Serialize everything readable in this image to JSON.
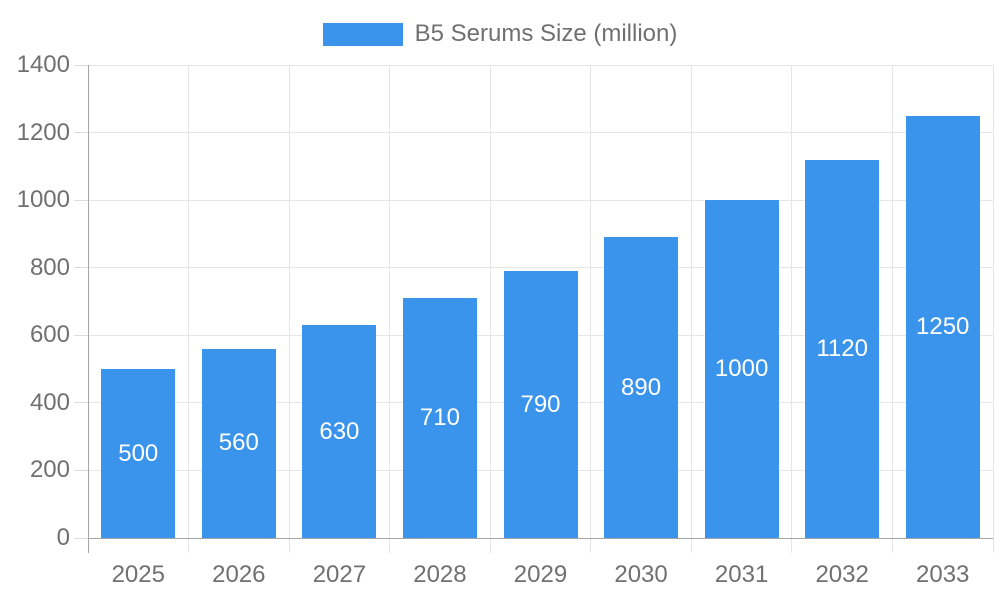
{
  "legend": {
    "label": "B5 Serums Size (million)"
  },
  "colors": {
    "bar": "#3b94eb",
    "bar_label": "#ffffff",
    "axis_text": "#707070",
    "gridline": "#e6e6e6",
    "axis_line": "#a5a5a5",
    "tick": "#dcdcdc"
  },
  "chart_data": {
    "type": "bar",
    "title": "",
    "series_name": "B5 Serums Size (million)",
    "categories": [
      "2025",
      "2026",
      "2027",
      "2028",
      "2029",
      "2030",
      "2031",
      "2032",
      "2033"
    ],
    "values": [
      500,
      560,
      630,
      710,
      790,
      890,
      1000,
      1120,
      1250
    ],
    "xlabel": "",
    "ylabel": "",
    "ylim": [
      0,
      1400
    ],
    "yticks": [
      0,
      200,
      400,
      600,
      800,
      1000,
      1200,
      1400
    ],
    "grid": "horizontal gridlines plus vertical category separators",
    "legend_position": "top-center",
    "bar_labels_inside": true
  }
}
